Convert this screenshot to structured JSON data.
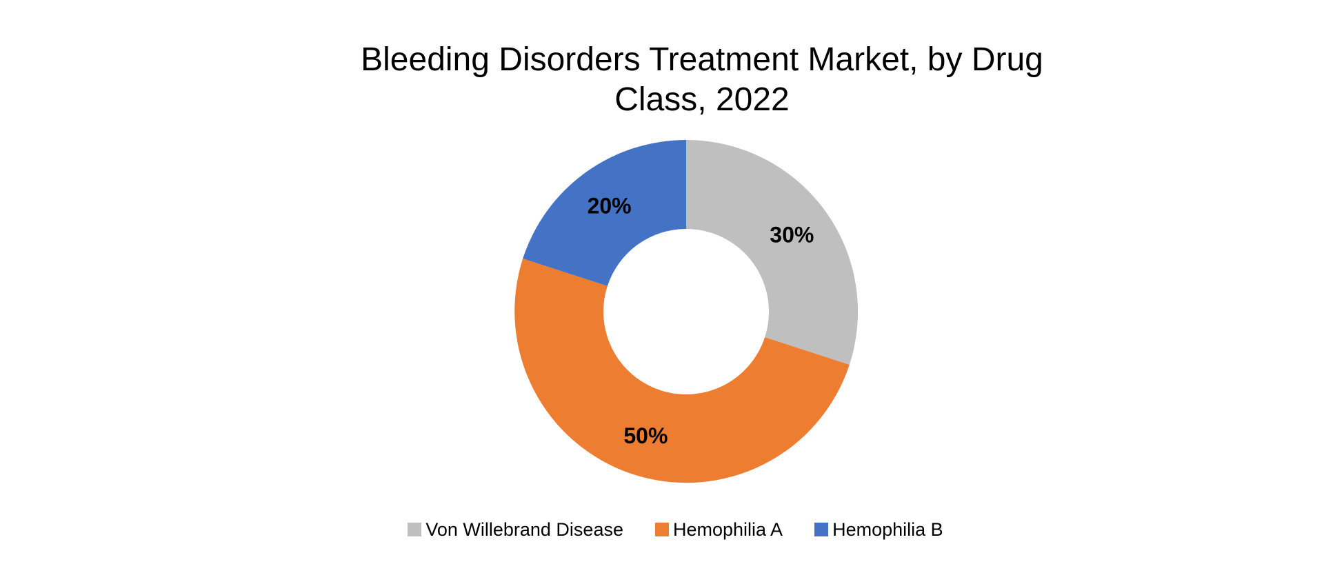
{
  "page": {
    "background_color": "#ffffff"
  },
  "chart": {
    "title": "Bleeding Disorders Treatment Market, by Drug Class, 2022"
  },
  "chart_data": {
    "type": "pie",
    "subtype": "donut",
    "title": "Bleeding Disorders Treatment Market, by Drug Class, 2022",
    "unit": "percent",
    "start_angle_deg": 0,
    "direction": "clockwise",
    "donut_hole_ratio": 0.48,
    "legend_position": "bottom",
    "data_label_style": "bold black percentages inside ring",
    "segments": [
      {
        "label": "Von Willebrand Disease",
        "value": 30,
        "data_label": "30%",
        "color": "#BFBFBF"
      },
      {
        "label": "Hemophilia A",
        "value": 50,
        "data_label": "50%",
        "color": "#ED7D31"
      },
      {
        "label": "Hemophilia B",
        "value": 20,
        "data_label": "20%",
        "color": "#4472C4"
      }
    ]
  }
}
